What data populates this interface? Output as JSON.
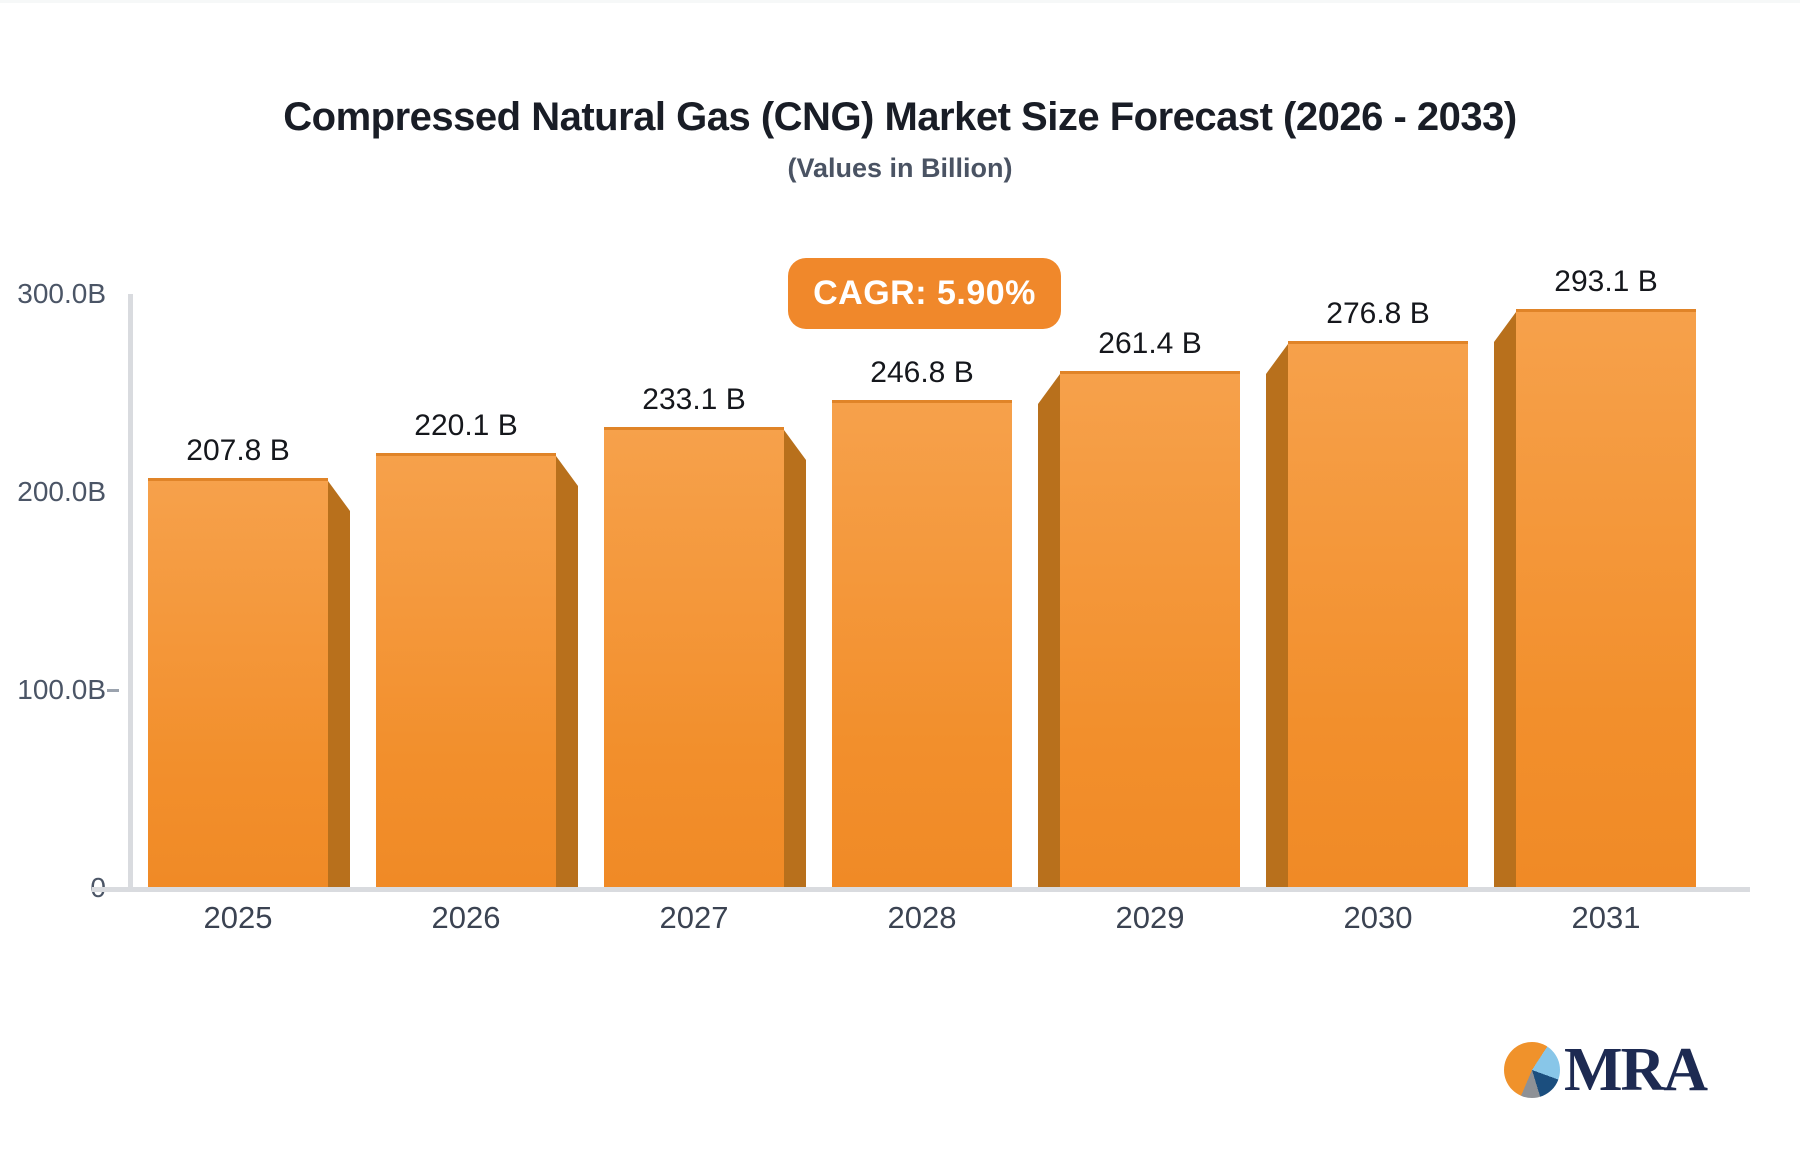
{
  "header": {
    "title": "Compressed Natural Gas (CNG) Market Size Forecast (2026 - 2033)",
    "subtitle": "(Values in Billion)"
  },
  "badge": {
    "label": "CAGR: 5.90%",
    "bg_color": "#F0882B",
    "text_color": "#FFFFFF"
  },
  "logo": {
    "text": "MRA",
    "pie_colors": {
      "orange": "#F0922B",
      "light_blue": "#88C6E8",
      "navy": "#1B4E7E",
      "gray": "#8E9196"
    },
    "text_color": "#1D2A52"
  },
  "chart_data": {
    "type": "bar",
    "title": "Compressed Natural Gas (CNG) Market Size Forecast (2026 - 2033)",
    "subtitle": "(Values in Billion)",
    "annotation": "CAGR: 5.90%",
    "categories": [
      "2025",
      "2026",
      "2027",
      "2028",
      "2029",
      "2030",
      "2031"
    ],
    "values": [
      207.8,
      220.1,
      233.1,
      246.8,
      261.4,
      276.8,
      293.1
    ],
    "value_labels": [
      "207.8 B",
      "220.1 B",
      "233.1 B",
      "246.8 B",
      "261.4 B",
      "276.8 B",
      "293.1 B"
    ],
    "unit": "Billion",
    "xlabel": "",
    "ylabel": "",
    "ylim": [
      0,
      300
    ],
    "y_ticks": [
      {
        "label": "300.0B",
        "value": 300,
        "dash": false
      },
      {
        "label": "200.0B",
        "value": 200,
        "dash": false
      },
      {
        "label": "100.0B",
        "value": 100,
        "dash": true
      },
      {
        "label": "0",
        "value": 0,
        "dash": true
      }
    ],
    "grid": false,
    "legend": false,
    "bar_colors": {
      "face_top": "#F6A14B",
      "face_bottom": "#F08A26",
      "top_border": "#E08428",
      "side_3d": "#B8701C"
    }
  }
}
